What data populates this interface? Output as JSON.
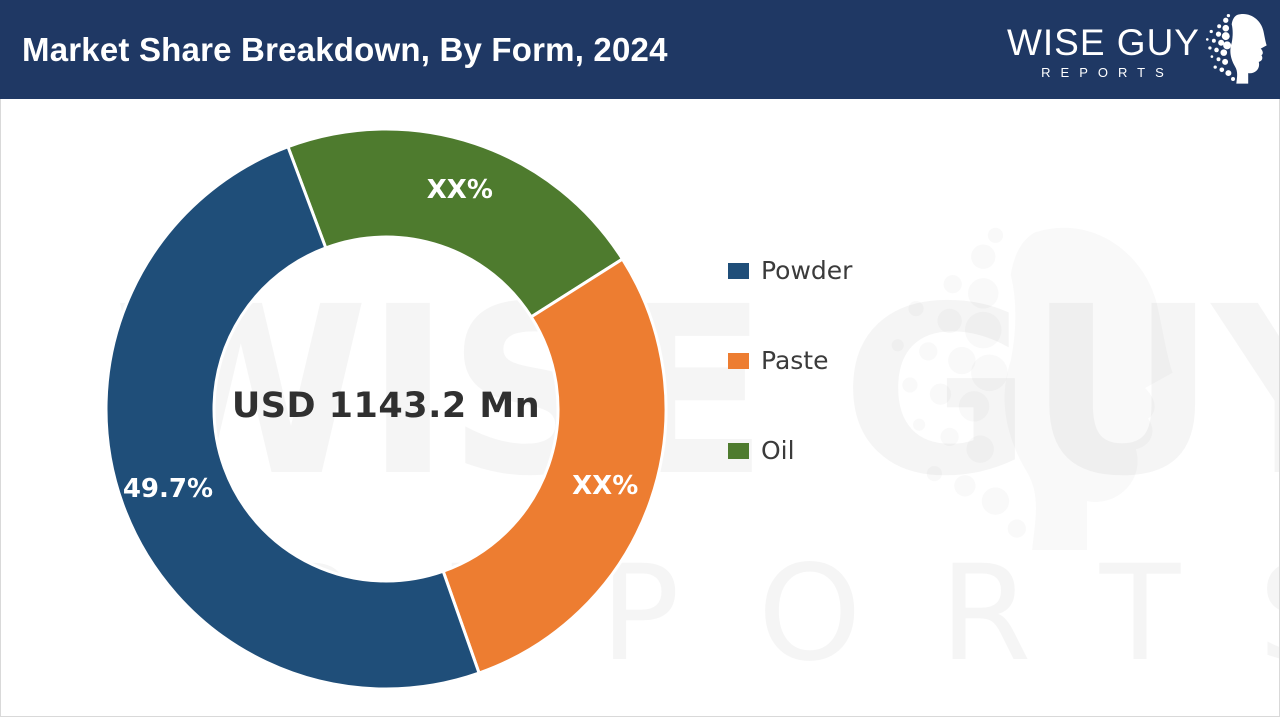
{
  "header": {
    "title": "Market Share Breakdown, By Form, 2024",
    "bg_color": "#1f3864",
    "logo": {
      "brand": "WISE GUY",
      "sub": "REPORTS"
    }
  },
  "watermark": {
    "line1": "WISE GUY",
    "line2": "REPORTS"
  },
  "chart_data": {
    "type": "pie",
    "subtype": "donut",
    "title": "Market Share Breakdown, By Form, 2024",
    "center_label": "USD 1143.2 Mn",
    "legend_position": "right",
    "rotation_deg": -20.5,
    "draw_order": [
      2,
      1,
      0
    ],
    "segments": [
      {
        "label": "Powder",
        "pct": 49.7,
        "display": "49.7%",
        "color": "#1f4e79"
      },
      {
        "label": "Paste",
        "pct": 28.6,
        "display": "XX%",
        "color": "#ed7d31"
      },
      {
        "label": "Oil",
        "pct": 21.7,
        "display": "XX%",
        "color": "#4e7b2e"
      }
    ]
  }
}
